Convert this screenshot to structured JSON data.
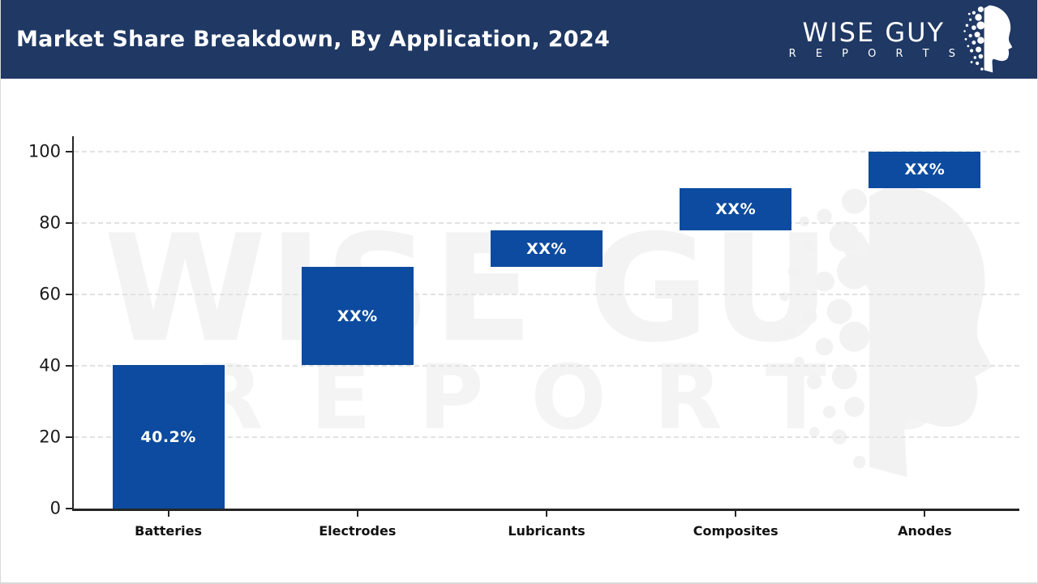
{
  "header": {
    "title": "Market Share Breakdown, By Application, 2024",
    "bg_color": "#1F3864",
    "logo": {
      "line1": "WISE GUY",
      "line2": "R E P O R T S"
    }
  },
  "watermark": {
    "line1": "WISE GUY",
    "line2": "REPORTS"
  },
  "chart_data": {
    "type": "bar",
    "subtype": "waterfall",
    "title": "Market Share Breakdown, By Application, 2024",
    "categories": [
      "Batteries",
      "Electrodes",
      "Lubricants",
      "Composites",
      "Anodes"
    ],
    "bars": [
      {
        "category": "Batteries",
        "start": 0,
        "end": 40.2,
        "label": "40.2%"
      },
      {
        "category": "Electrodes",
        "start": 40.2,
        "end": 67.7,
        "label": "XX%"
      },
      {
        "category": "Lubricants",
        "start": 67.7,
        "end": 77.9,
        "label": "XX%"
      },
      {
        "category": "Composites",
        "start": 77.9,
        "end": 89.8,
        "label": "XX%"
      },
      {
        "category": "Anodes",
        "start": 89.8,
        "end": 100,
        "label": "XX%"
      }
    ],
    "y_ticks": [
      0,
      20,
      40,
      60,
      80,
      100
    ],
    "ylim": [
      0,
      104.3
    ],
    "xlabel": "",
    "ylabel": "",
    "grid": "horizontal-dashed",
    "legend": false,
    "bar_color": "#0C4B9F",
    "bar_label_color": "#FFFFFF",
    "axis_color": "#262626",
    "grid_color": "#E2E2E2"
  }
}
